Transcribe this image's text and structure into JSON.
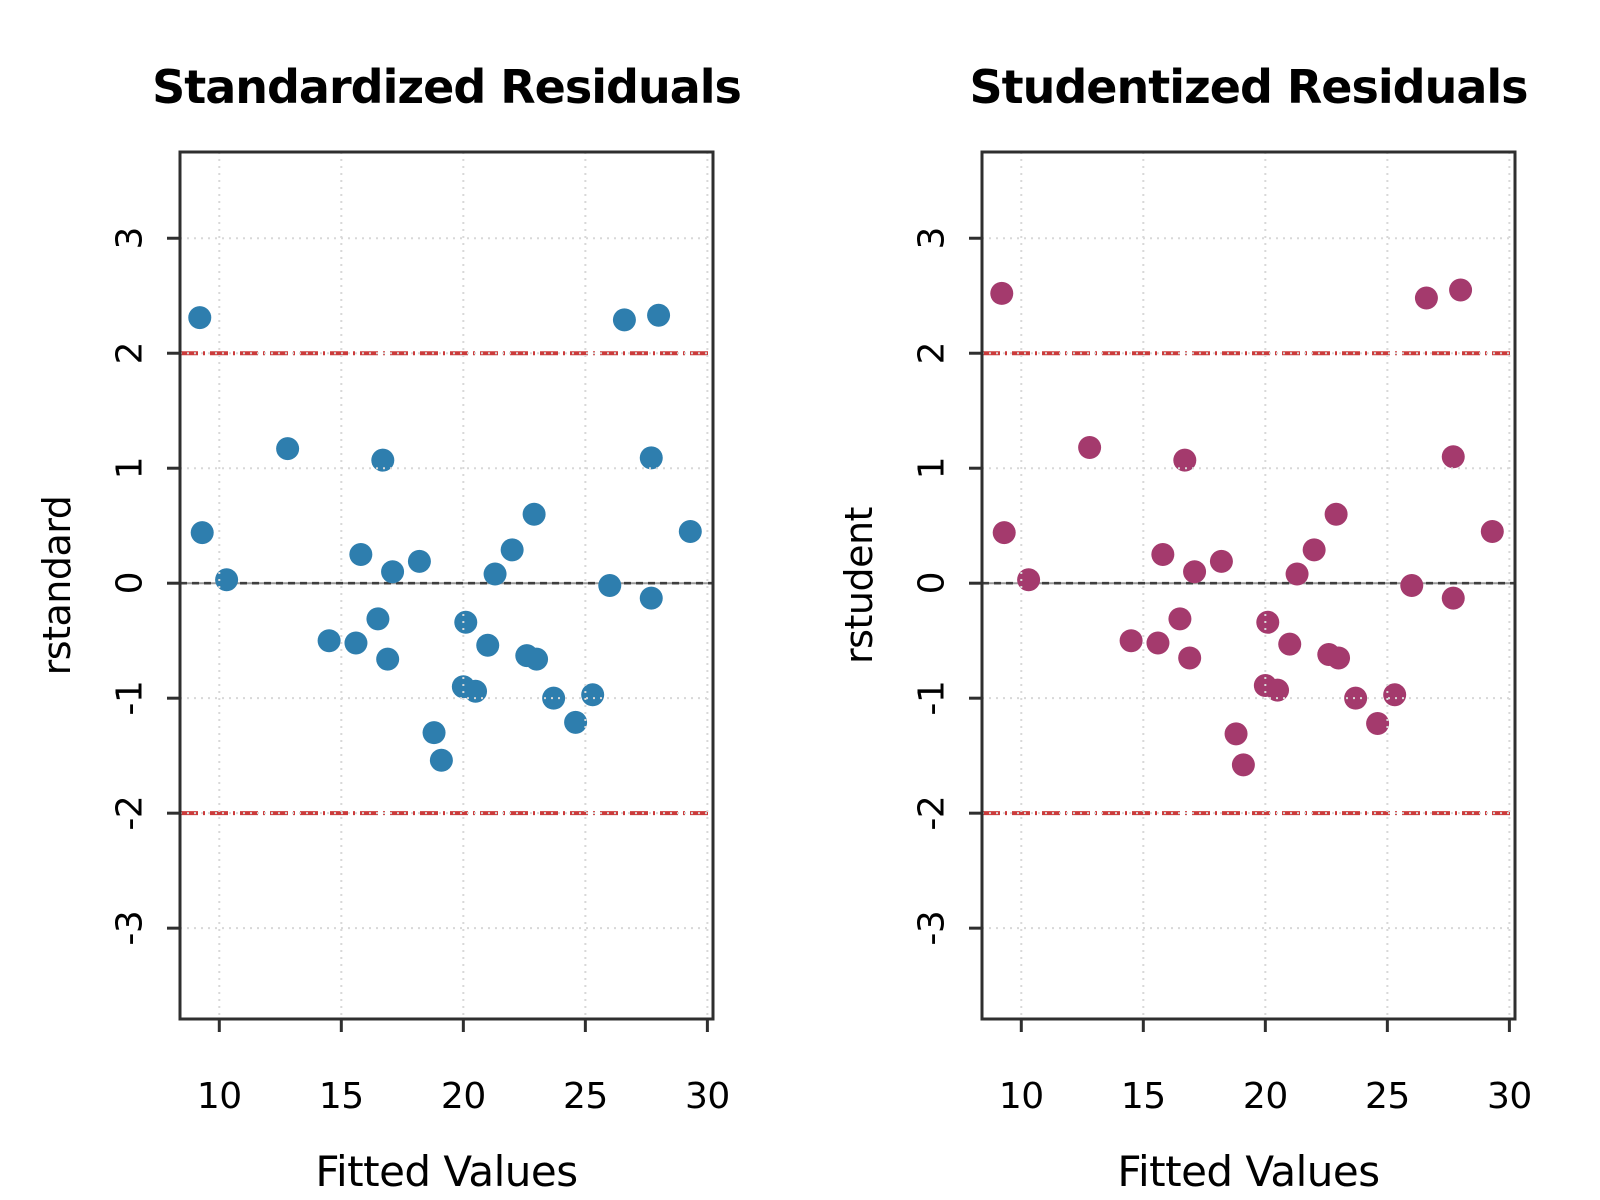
{
  "figure": {
    "background": "#ffffff",
    "border_color": "#2f2f2f",
    "grid_color": "#d8d8d8",
    "zero_line_color": "#3f3f3f",
    "zero_line_base_color": "#9a9a9a",
    "threshold_color": "#cb3b3b"
  },
  "chart_data": [
    {
      "type": "scatter",
      "title": "Standardized Residuals",
      "xlabel": "Fitted Values",
      "ylabel": "rstandard",
      "point_color": "#2e7eae",
      "grid": true,
      "legend": "none",
      "xlim": [
        8.39,
        30.23
      ],
      "ylim": [
        -3.79,
        3.75
      ],
      "x_ticks": [
        10,
        15,
        20,
        25,
        30
      ],
      "y_ticks": [
        3,
        2,
        1,
        0,
        -1,
        -2,
        -3
      ],
      "reference_lines": [
        {
          "y": 0,
          "style": "dotted-dark"
        },
        {
          "y": 2,
          "style": "dashed-red"
        },
        {
          "y": -2,
          "style": "dashed-red"
        }
      ],
      "points": [
        [
          9.2,
          2.31
        ],
        [
          26.6,
          2.29
        ],
        [
          28.0,
          2.33
        ],
        [
          12.8,
          1.17
        ],
        [
          16.7,
          1.07
        ],
        [
          27.7,
          1.09
        ],
        [
          9.3,
          0.44
        ],
        [
          10.3,
          0.03
        ],
        [
          15.8,
          0.25
        ],
        [
          17.1,
          0.1
        ],
        [
          18.2,
          0.19
        ],
        [
          21.3,
          0.08
        ],
        [
          22.0,
          0.29
        ],
        [
          22.9,
          0.6
        ],
        [
          29.3,
          0.45
        ],
        [
          26.0,
          -0.02
        ],
        [
          27.7,
          -0.13
        ],
        [
          14.5,
          -0.5
        ],
        [
          15.6,
          -0.52
        ],
        [
          16.5,
          -0.31
        ],
        [
          16.9,
          -0.66
        ],
        [
          20.1,
          -0.34
        ],
        [
          21.0,
          -0.54
        ],
        [
          22.6,
          -0.63
        ],
        [
          23.0,
          -0.66
        ],
        [
          20.0,
          -0.9
        ],
        [
          20.5,
          -0.94
        ],
        [
          23.7,
          -1.0
        ],
        [
          25.3,
          -0.97
        ],
        [
          24.6,
          -1.21
        ],
        [
          18.8,
          -1.3
        ],
        [
          19.1,
          -1.54
        ]
      ]
    },
    {
      "type": "scatter",
      "title": "Studentized Residuals",
      "xlabel": "Fitted Values",
      "ylabel": "rstudent",
      "point_color": "#a43a6d",
      "grid": true,
      "legend": "none",
      "xlim": [
        8.39,
        30.23
      ],
      "ylim": [
        -3.79,
        3.75
      ],
      "x_ticks": [
        10,
        15,
        20,
        25,
        30
      ],
      "y_ticks": [
        3,
        2,
        1,
        0,
        -1,
        -2,
        -3
      ],
      "reference_lines": [
        {
          "y": 0,
          "style": "dotted-dark"
        },
        {
          "y": 2,
          "style": "dashed-red"
        },
        {
          "y": -2,
          "style": "dashed-red"
        }
      ],
      "points": [
        [
          9.2,
          2.52
        ],
        [
          26.6,
          2.48
        ],
        [
          28.0,
          2.55
        ],
        [
          12.8,
          1.18
        ],
        [
          16.7,
          1.07
        ],
        [
          27.7,
          1.1
        ],
        [
          9.3,
          0.44
        ],
        [
          10.3,
          0.03
        ],
        [
          15.8,
          0.25
        ],
        [
          17.1,
          0.1
        ],
        [
          18.2,
          0.19
        ],
        [
          21.3,
          0.08
        ],
        [
          22.0,
          0.29
        ],
        [
          22.9,
          0.6
        ],
        [
          29.3,
          0.45
        ],
        [
          26.0,
          -0.02
        ],
        [
          27.7,
          -0.13
        ],
        [
          14.5,
          -0.5
        ],
        [
          15.6,
          -0.52
        ],
        [
          16.5,
          -0.31
        ],
        [
          16.9,
          -0.65
        ],
        [
          20.1,
          -0.34
        ],
        [
          21.0,
          -0.53
        ],
        [
          22.6,
          -0.62
        ],
        [
          23.0,
          -0.65
        ],
        [
          20.0,
          -0.89
        ],
        [
          20.5,
          -0.93
        ],
        [
          23.7,
          -1.0
        ],
        [
          25.3,
          -0.97
        ],
        [
          24.6,
          -1.22
        ],
        [
          18.8,
          -1.31
        ],
        [
          19.1,
          -1.58
        ]
      ]
    }
  ]
}
